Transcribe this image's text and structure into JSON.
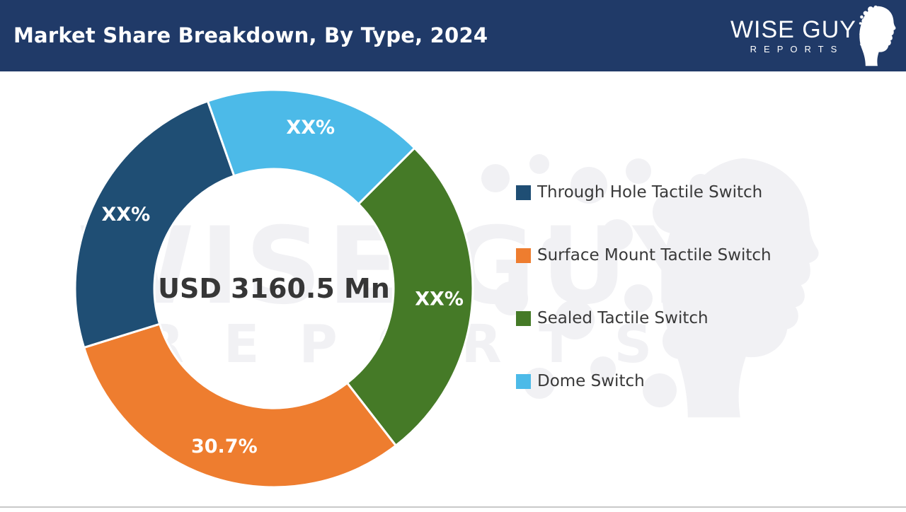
{
  "header": {
    "title": "Market Share Breakdown, By Type, 2024",
    "bg_color": "#203A68",
    "logo_line1": "WISE GUY",
    "logo_line2": "REPORTS"
  },
  "chart_data": {
    "type": "pie",
    "subtype": "donut",
    "title": "Market Share Breakdown, By Type, 2024",
    "center_label": "USD 3160.5 Mn",
    "series": [
      {
        "name": "Through Hole Tactile Switch",
        "value": 24.4,
        "display_label": "XX%",
        "color": "#1F4E74"
      },
      {
        "name": "Surface Mount Tactile Switch",
        "value": 30.7,
        "display_label": "30.7%",
        "color": "#EE7D2F"
      },
      {
        "name": "Sealed Tactile Switch",
        "value": 27.0,
        "display_label": "XX%",
        "color": "#457A27"
      },
      {
        "name": "Dome Switch",
        "value": 17.9,
        "display_label": "XX%",
        "color": "#4CBAE8"
      }
    ],
    "draw_order": [
      2,
      1,
      0,
      3
    ],
    "start_angle_deg": 45,
    "clockwise": true,
    "legend_position": "right",
    "slice_gap_color": "#ffffff"
  },
  "watermark": {
    "line1": "WISE GUY",
    "line2": "REPORTS"
  },
  "footer": {
    "line_color": "#c9c9c9"
  }
}
